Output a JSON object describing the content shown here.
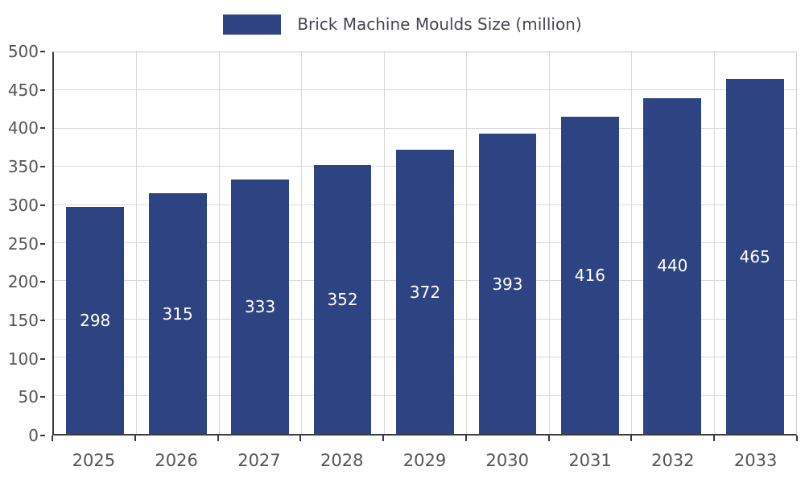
{
  "legend": {
    "label": "Brick Machine Moulds Size (million)",
    "swatch_color": "#2e4482"
  },
  "chart_data": {
    "type": "bar",
    "title": "Brick Machine Moulds Size (million)",
    "categories": [
      "2025",
      "2026",
      "2027",
      "2028",
      "2029",
      "2030",
      "2031",
      "2032",
      "2033"
    ],
    "values": [
      298,
      315,
      333,
      352,
      372,
      393,
      416,
      440,
      465
    ],
    "xlabel": "",
    "ylabel": "",
    "ylim": [
      0,
      500
    ],
    "yticks": [
      0,
      50,
      100,
      150,
      200,
      250,
      300,
      350,
      400,
      450,
      500
    ],
    "grid": true,
    "legend_position": "top",
    "bar_color": "#2e4482",
    "value_label_color": "#ffffff",
    "axis_text_color": "#555555"
  }
}
